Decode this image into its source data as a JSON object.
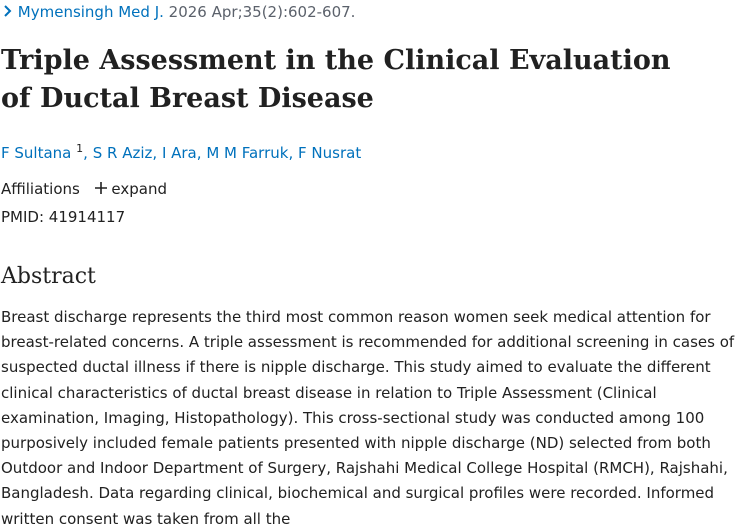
{
  "journal": {
    "name": "Mymensingh Med J.",
    "citation": "2026 Apr;35(2):602-607."
  },
  "title": "Triple Assessment in the Clinical Evaluation of Ductal Breast Disease",
  "authors": {
    "names": [
      "F Sultana",
      "S R Aziz",
      "I Ara",
      "M M Farruk",
      "F Nusrat"
    ],
    "first_affiliation": "1",
    "separator": ","
  },
  "affiliations": {
    "label": "Affiliations",
    "toggle": "expand"
  },
  "pmid": {
    "label": "PMID:",
    "value": "41914117"
  },
  "abstract": {
    "heading": "Abstract",
    "text": "Breast discharge represents the third most common reason women seek medical attention for breast-related concerns. A triple assessment is recommended for additional screening in cases of suspected ductal illness if there is nipple discharge. This study aimed to evaluate the different clinical characteristics of ductal breast disease in relation to Triple Assessment (Clinical examination, Imaging, Histopathology). This cross-sectional study was conducted among 100 purposively included female patients presented with nipple discharge (ND) selected from both Outdoor and Indoor Department of Surgery, Rajshahi Medical College Hospital (RMCH), Rajshahi, Bangladesh. Data regarding clinical, biochemical and surgical profiles were recorded. Informed written consent was taken from all the"
  }
}
